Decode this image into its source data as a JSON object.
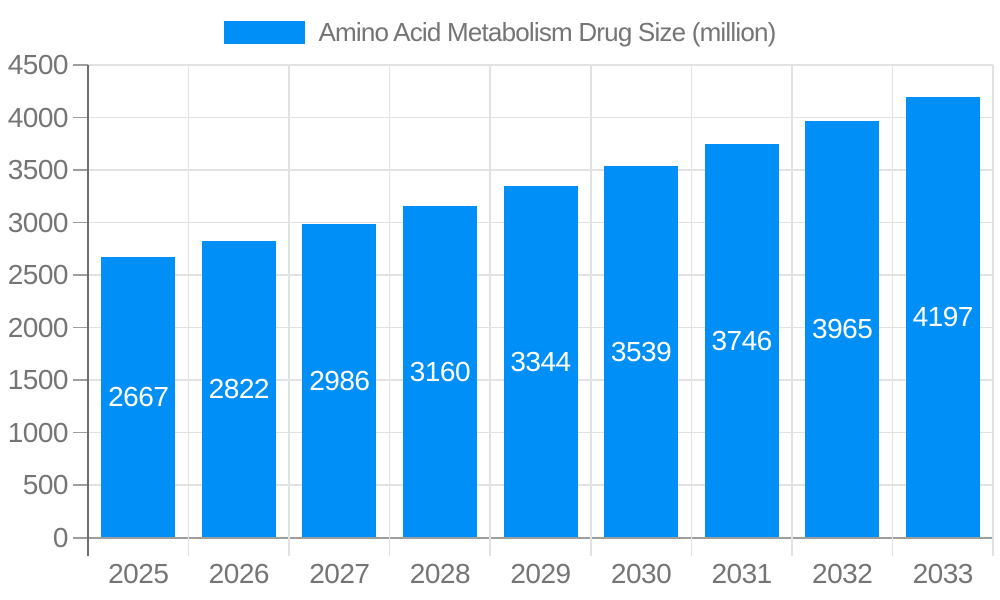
{
  "chart_data": {
    "type": "bar",
    "title": "Amino Acid Metabolism Drug Size (million)",
    "categories": [
      "2025",
      "2026",
      "2027",
      "2028",
      "2029",
      "2030",
      "2031",
      "2032",
      "2033"
    ],
    "values": [
      2667,
      2822,
      2986,
      3160,
      3344,
      3539,
      3746,
      3965,
      4197
    ],
    "xlabel": "",
    "ylabel": "",
    "ylim": [
      0,
      4500
    ],
    "y_ticks": [
      0,
      500,
      1000,
      1500,
      2000,
      2500,
      3000,
      3500,
      4000,
      4500
    ],
    "grid": true,
    "legend_position": "top",
    "bar_color": "#008ff7",
    "bar_label_color": "#ffffff",
    "axis_text_color": "#757575",
    "gridline_color": "#e2e2e2",
    "zero_line_color": "#9e9e9e",
    "axis_line_color": "#6e6e6e",
    "background_color": "#ffffff"
  }
}
